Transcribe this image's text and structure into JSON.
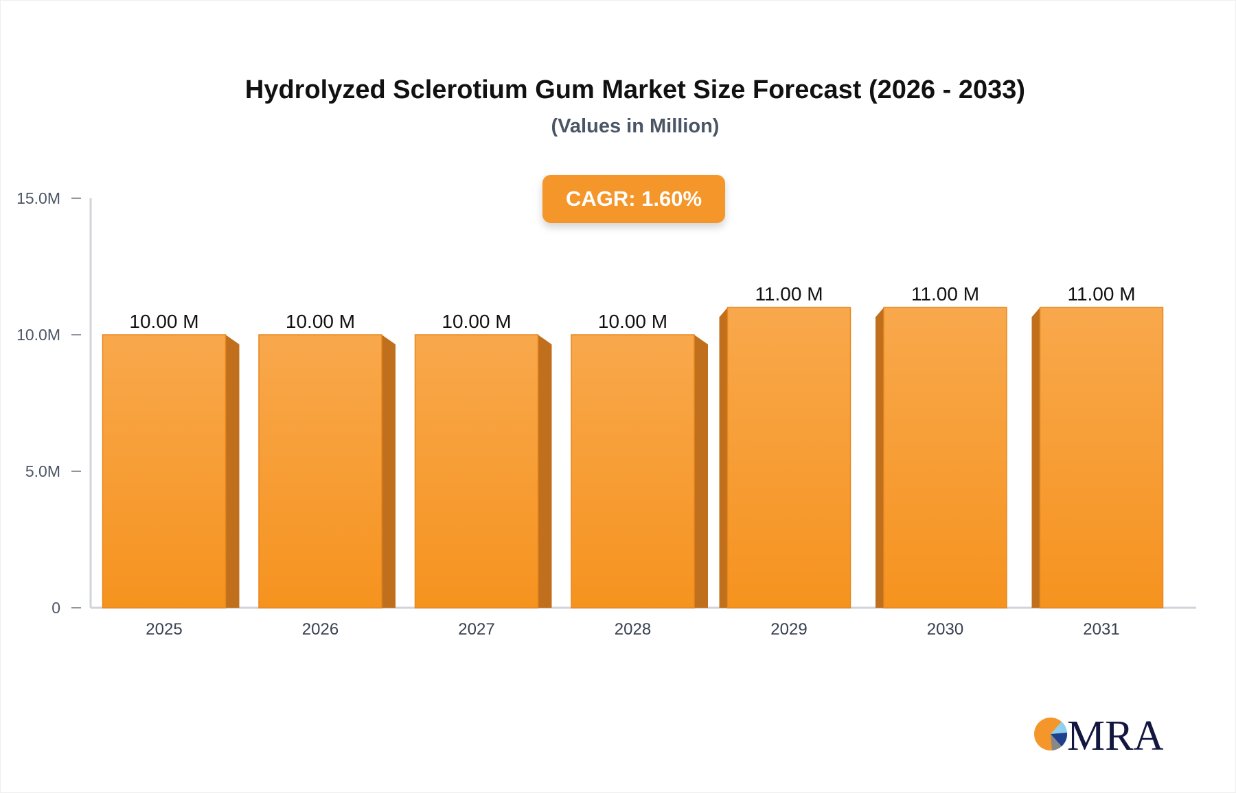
{
  "chart_data": {
    "type": "bar",
    "title": "Hydrolyzed Sclerotium Gum Market Size Forecast (2026 - 2033)",
    "subtitle": "(Values in Million)",
    "categories": [
      "2025",
      "2026",
      "2027",
      "2028",
      "2029",
      "2030",
      "2031"
    ],
    "values": [
      10.0,
      10.0,
      10.0,
      10.0,
      11.0,
      11.0,
      11.0
    ],
    "data_labels": [
      "10.00 M",
      "10.00 M",
      "10.00 M",
      "10.00 M",
      "11.00 M",
      "11.00 M",
      "11.00 M"
    ],
    "yticks": [
      0,
      5,
      10,
      15
    ],
    "ytick_labels": [
      "0",
      "5.0M",
      "10.0M",
      "15.0M"
    ],
    "ylim": [
      0,
      15
    ],
    "xlabel": "",
    "ylabel": "",
    "grid": false,
    "bar_color": "#f7a040",
    "bar_side_color": "#c0701c",
    "annotation": "CAGR: 1.60%",
    "annotation_color": "#f4962a"
  },
  "logo": {
    "text": "MRA"
  }
}
